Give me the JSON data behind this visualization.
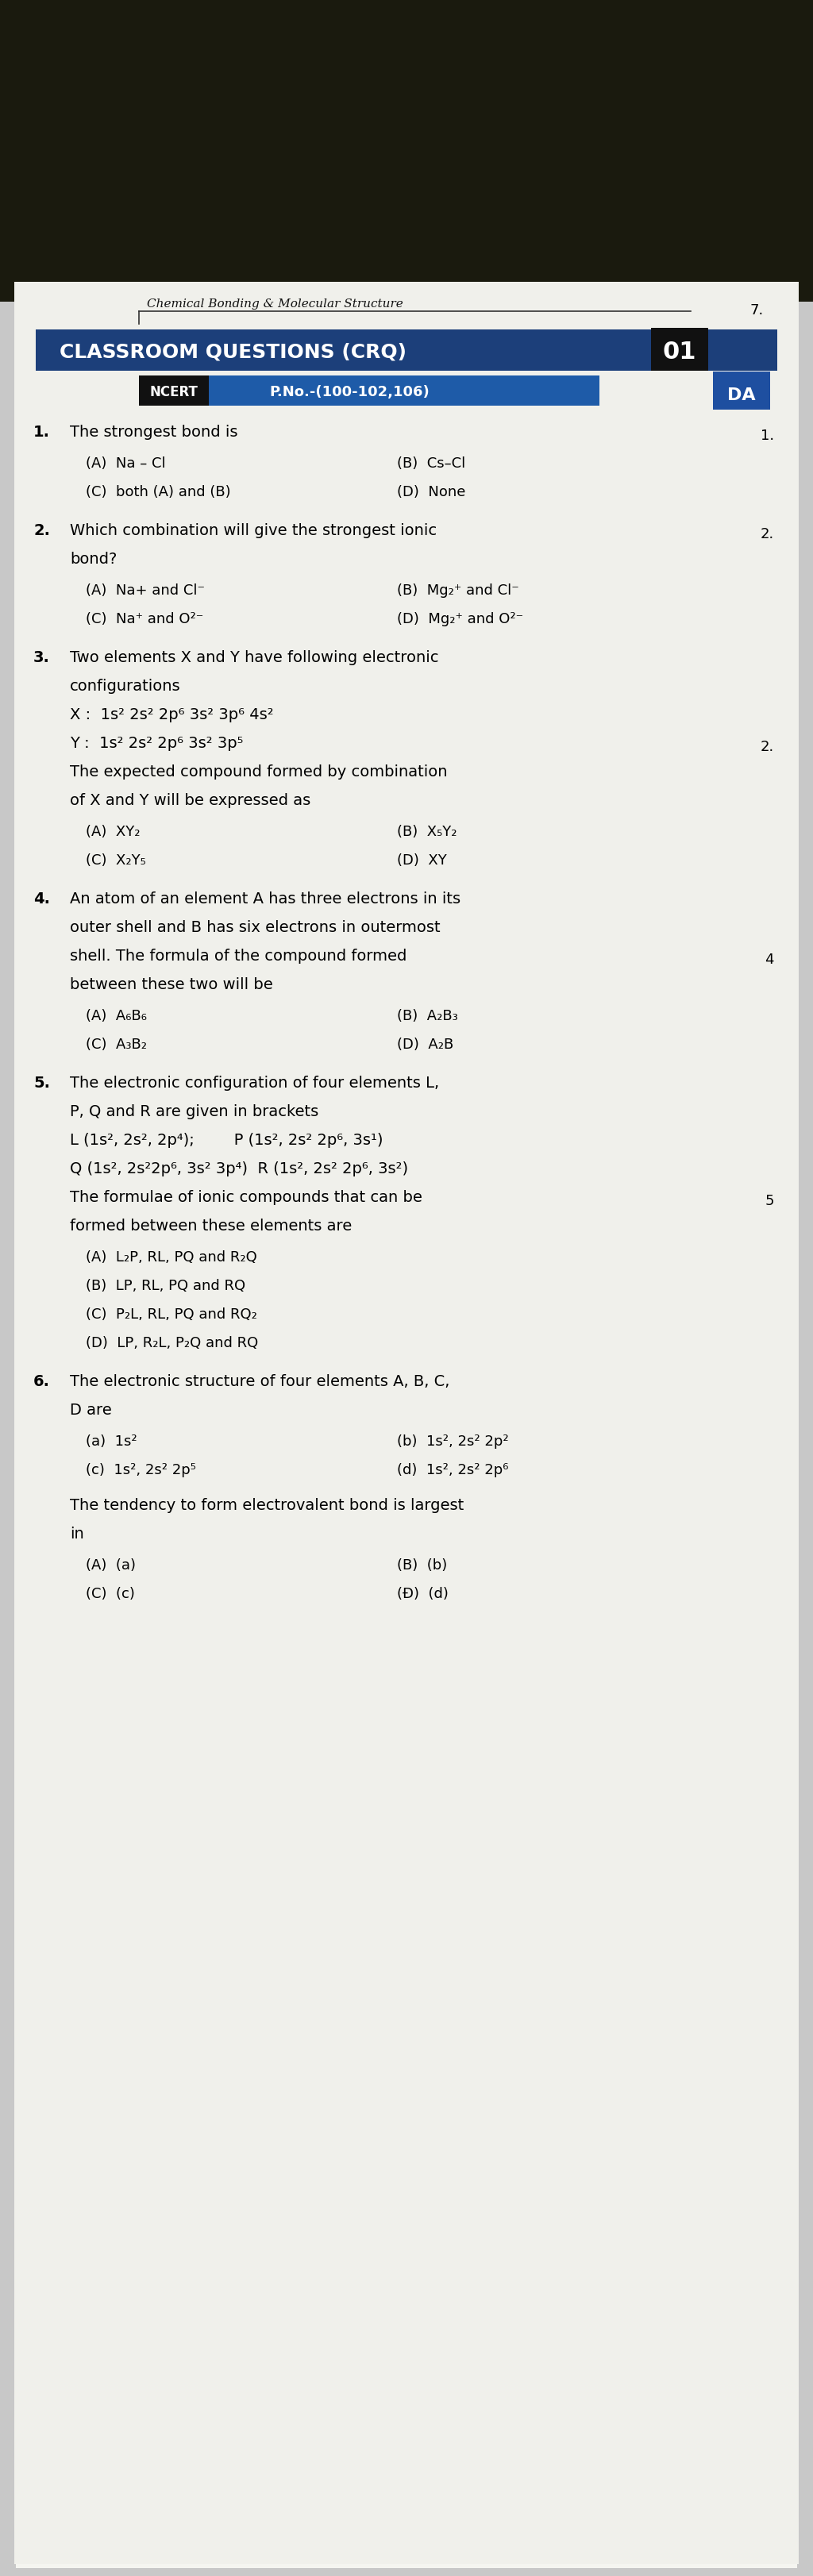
{
  "bg_color": "#c8c8c8",
  "page_bg": "#f2f2f2",
  "header_italic": "Chemical Bonding & Molecular Structure",
  "header_bold": "CLASSROOM QUESTIONS (CRQ)",
  "header_num": "01",
  "ncert_label": "NCERT",
  "ncert_sub": "P.No.-(100-102,106)",
  "da_label": "DA",
  "q1_num": "1.",
  "q1_text": "The strongest bond is",
  "q1_opts": [
    [
      "(A)  Na – Cl",
      "(B)  Cs–Cl"
    ],
    [
      "(C)  both (A) and (B)",
      "(D)  None"
    ]
  ],
  "q1_right": "1.",
  "q2_num": "2.",
  "q2_text": "Which combination will give the strongest ionic\nbond?",
  "q2_opts": [
    [
      "(A)  Na+ and Cl⁻",
      "(B)  Mg₂⁺ and Cl⁻"
    ],
    [
      "(C)  Na⁺ and O²⁻",
      "(D)  Mg₂⁺ and O²⁻"
    ]
  ],
  "q2_right": "2.",
  "q3_num": "3.",
  "q3_text": "Two elements X and Y have following electronic\nconfigurations\nX :  1s² 2s² 2p⁶ 3s² 3p⁶ 4s²\nY :  1s² 2s² 2p⁶ 3s² 3p⁵\nThe expected compound formed by combination\nof X and Y will be expressed as",
  "q3_opts": [
    [
      "(A)  XY₂",
      "(B)  X₅Y₂"
    ],
    [
      "(C)  X₂Y₅",
      "(D)  XY"
    ]
  ],
  "q3_right": "2.",
  "q4_num": "4.",
  "q4_text": "An atom of an element A has three electrons in its\nouter shell and B has six electrons in outermost\nshell. The formula of the compound formed\nbetween these two will be",
  "q4_opts": [
    [
      "(A)  A₆B₆",
      "(B)  A₂B₃"
    ],
    [
      "(C)  A₃B₂",
      "(D)  A₂B"
    ]
  ],
  "q4_right": "4",
  "q5_num": "5.",
  "q5_text": "The electronic configuration of four elements L,\nP, Q and R are given in brackets\nL (1s², 2s², 2p⁴);        P (1s², 2s² 2p⁶, 3s¹)\nQ (1s², 2s²2p⁶, 3s² 3p⁴)  R (1s², 2s² 2p⁶, 3s²)\nThe formulae of ionic compounds that can be\nformed between these elements are",
  "q5_opts_single": [
    "(A)  L₂P, RL, PQ and R₂Q",
    "(B)  LP, RL, PQ and RQ",
    "(C)  P₂L, RL, PQ and RQ₂",
    "(D)  LP, R₂L, P₂Q and RQ"
  ],
  "q5_right": "5",
  "q6_num": "6.",
  "q6_text": "The electronic structure of four elements A, B, C,\nD are",
  "q6_opts": [
    [
      "(a)  1s²",
      "(b)  1s², 2s² 2p²"
    ],
    [
      "(c)  1s², 2s² 2p⁵",
      "(d)  1s², 2s² 2p⁶"
    ]
  ],
  "q6_extra": "The tendency to form electrovalent bond is largest\nin",
  "q6_extra_opts": [
    [
      "(A)  (a)",
      "(B)  (b)"
    ],
    [
      "(C)  (c)",
      "(Ð)  (d)"
    ]
  ]
}
